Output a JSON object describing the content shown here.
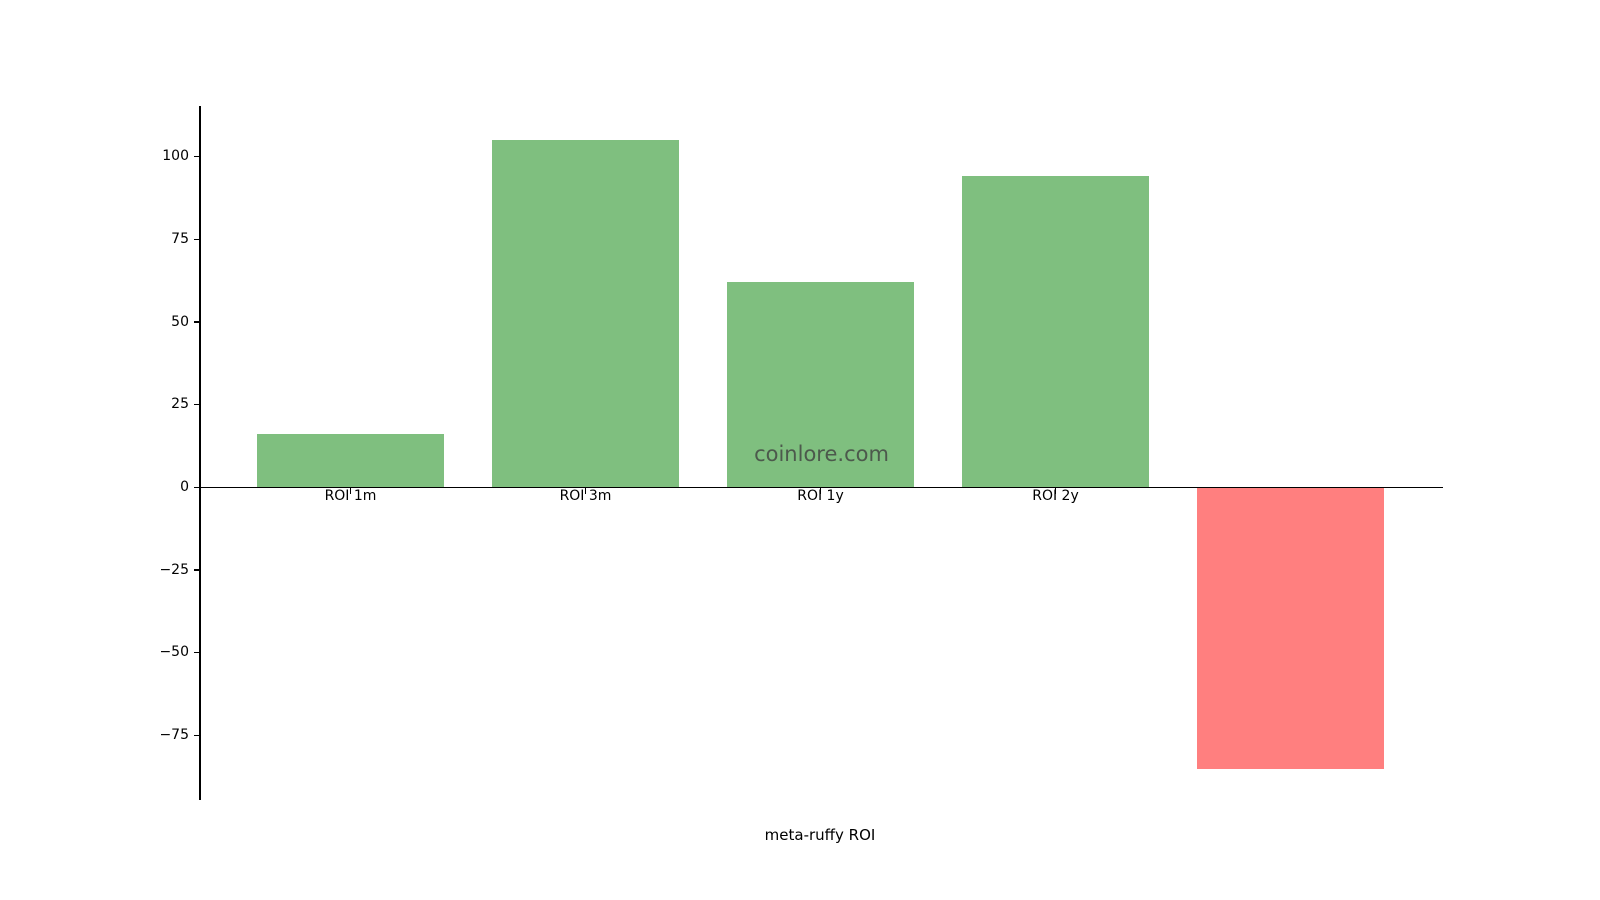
{
  "watermark": "coinlore.com",
  "chart_data": {
    "type": "bar",
    "title": "",
    "xlabel": "meta-ruffy ROI",
    "ylabel": "",
    "categories": [
      "ROI 1m",
      "ROI 3m",
      "ROI 1y",
      "ROI 2y",
      ""
    ],
    "values": [
      16,
      105,
      62,
      94,
      -85
    ],
    "ylim": [
      -94.5,
      115.3
    ],
    "yticks": [
      100,
      75,
      50,
      25,
      0,
      -25,
      -50,
      -75
    ],
    "ytick_labels": [
      "100",
      "75",
      "50",
      "25",
      "0",
      "−25",
      "−50",
      "−75"
    ],
    "positive_color": "#7fbf7f",
    "negative_color": "#ff7f7f",
    "axis_color": "#000000",
    "grid": false,
    "legend": "none"
  }
}
